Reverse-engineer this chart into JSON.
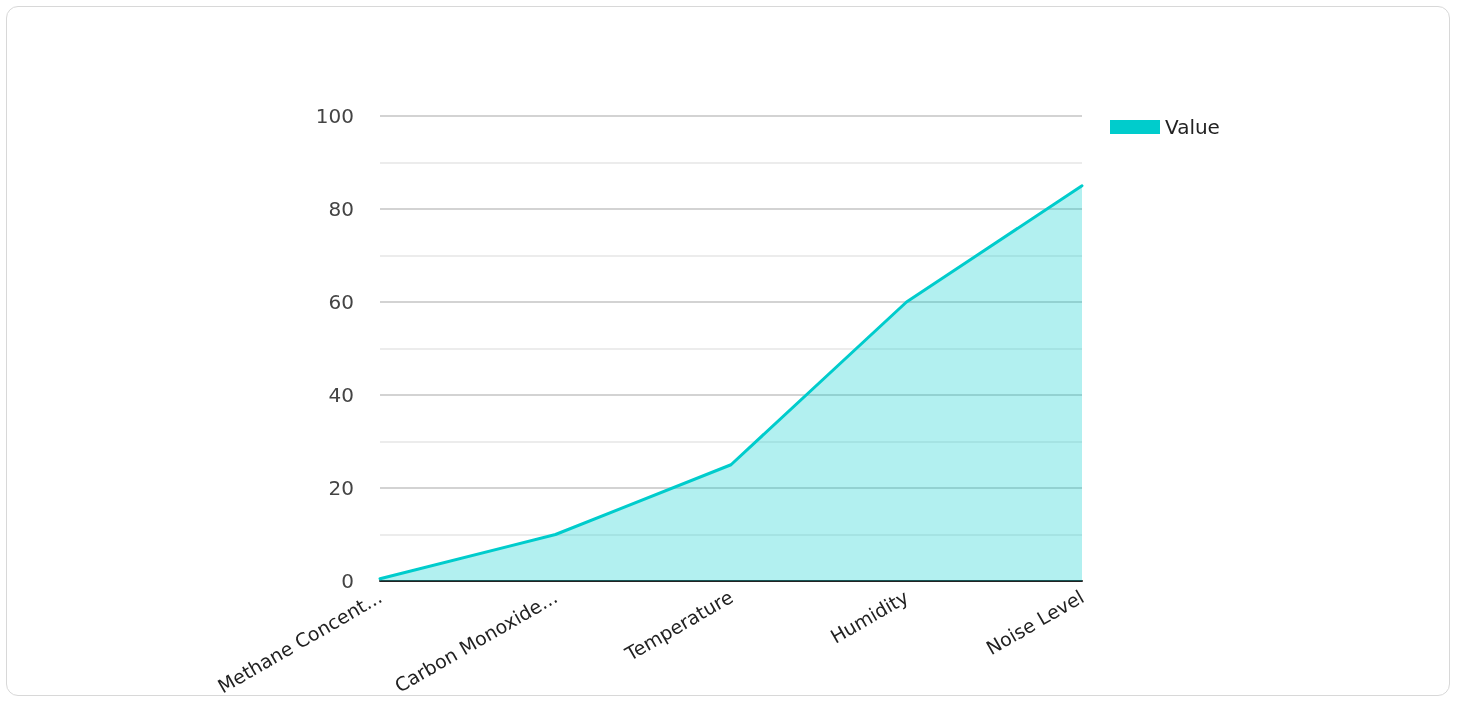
{
  "chart_data": {
    "type": "area",
    "categories": [
      "Methane Concent...",
      "Carbon Monoxide...",
      "Temperature",
      "Humidity",
      "Noise Level"
    ],
    "series": [
      {
        "name": "Value",
        "color": "#00cccc",
        "values": [
          0.5,
          10,
          25,
          60,
          85
        ]
      }
    ],
    "ylim": [
      0,
      100
    ],
    "yticks": [
      0,
      {
        "value": 10,
        "label": null
      },
      20,
      {
        "value": 30,
        "label": null
      },
      40,
      {
        "value": 50,
        "label": null
      },
      60,
      {
        "value": 70,
        "label": null
      },
      80,
      {
        "value": 90,
        "label": null
      },
      100
    ],
    "grid": "y",
    "legend": "top right",
    "marker": "none",
    "line_style": "solid"
  }
}
